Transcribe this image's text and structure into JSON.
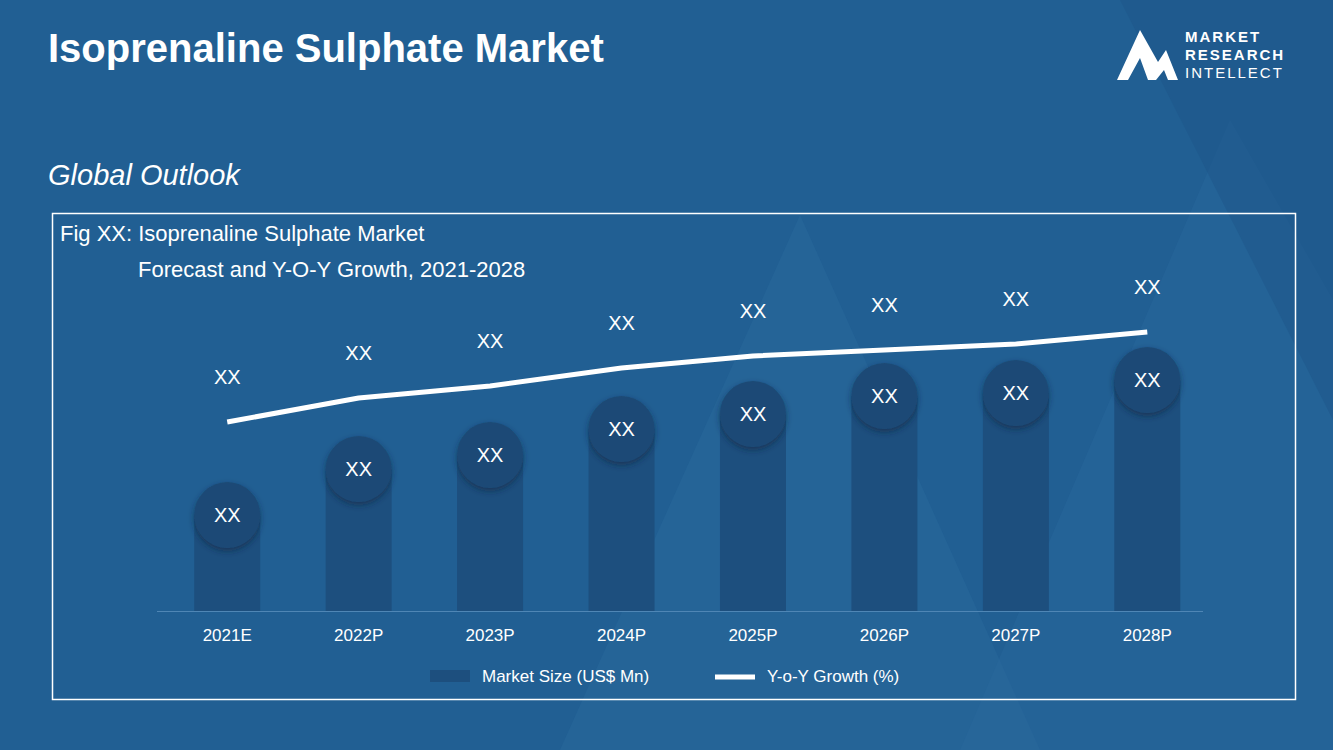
{
  "chart_data": {
    "type": "bar",
    "title": "Isoprenaline Sulphate Market",
    "subtitle": "Global Outlook",
    "figure_title": [
      "Fig XX:  Isoprenaline Sulphate Market",
      "Forecast and Y-O-Y Growth, 2021-2028"
    ],
    "brand": [
      "MARKET",
      "RESEARCH",
      "INTELLECT"
    ],
    "categories": [
      "2021E",
      "2022P",
      "2023P",
      "2024P",
      "2025P",
      "2026P",
      "2027P",
      "2028P"
    ],
    "series": [
      {
        "name": "Market Size (US$ Mn)",
        "type": "bar",
        "color": "#1d4f7e",
        "values": [
          96,
          142,
          156,
          182,
          197,
          215,
          218,
          231
        ],
        "value_labels": [
          "XX",
          "XX",
          "XX",
          "XX",
          "XX",
          "XX",
          "XX",
          "XX"
        ]
      },
      {
        "name": "Y-o-Y Growth (%)",
        "type": "line",
        "color": "#ffffff",
        "axis": "y2",
        "values": [
          63,
          71,
          75,
          81,
          85,
          87,
          89,
          93
        ],
        "value_labels": [
          "XX",
          "XX",
          "XX",
          "XX",
          "XX",
          "XX",
          "XX",
          "XX"
        ]
      }
    ],
    "ylim": [
      0,
      300
    ],
    "y2lim": [
      0,
      100
    ],
    "tick_labels": "x",
    "data_labels": true,
    "legend": "bottom",
    "grid": false
  }
}
